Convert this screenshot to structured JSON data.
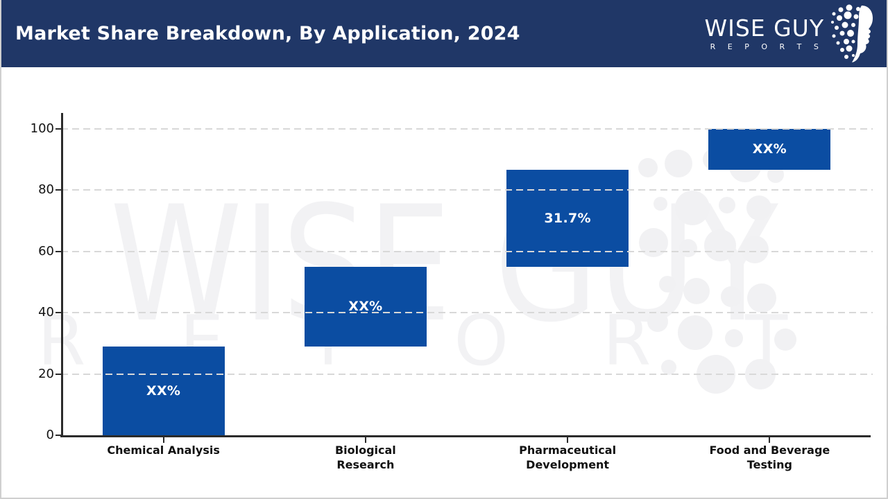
{
  "header": {
    "title": "Market Share Breakdown, By Application, 2024",
    "logo": {
      "name": "WISE GUY",
      "tagline": "R E P O R T S",
      "mark": "dotted-face-profile"
    }
  },
  "watermark": {
    "line1": "WISE GUY",
    "line2": "R E P O R T S"
  },
  "colors": {
    "header_bg": "#203767",
    "bar": "#0b4da2",
    "bar_label": "#ffffff",
    "grid": "#d8d8d8",
    "axis": "#2b2b2b",
    "watermark": "#f2f2f4",
    "border": "#cfcfcf"
  },
  "chart_data": {
    "type": "bar",
    "subtype": "waterfall",
    "title": "Market Share Breakdown, By Application, 2024",
    "categories": [
      "Chemical Analysis",
      "Biological Research",
      "Pharmaceutical Development",
      "Food and Beverage Testing"
    ],
    "category_lines": [
      [
        "Chemical Analysis"
      ],
      [
        "Biological",
        "Research"
      ],
      [
        "Pharmaceutical",
        "Development"
      ],
      [
        "Food and Beverage",
        "Testing"
      ]
    ],
    "series": [
      {
        "name": "Market Share (%)",
        "segments": [
          {
            "category": "Chemical Analysis",
            "start": 0,
            "end": 29,
            "value_label": "XX%"
          },
          {
            "category": "Biological Research",
            "start": 29,
            "end": 55,
            "value_label": "XX%"
          },
          {
            "category": "Pharmaceutical Development",
            "start": 55,
            "end": 86.7,
            "value_label": "31.7%"
          },
          {
            "category": "Food and Beverage Testing",
            "start": 86.7,
            "end": 100,
            "value_label": "XX%"
          }
        ]
      }
    ],
    "ylim": [
      0,
      100
    ],
    "yticks": [
      0,
      20,
      40,
      60,
      80,
      100
    ],
    "grid": "horizontal-dashed-over-bars",
    "legend": "none",
    "bar_color": "#0b4da2",
    "value_label_color": "#ffffff"
  }
}
